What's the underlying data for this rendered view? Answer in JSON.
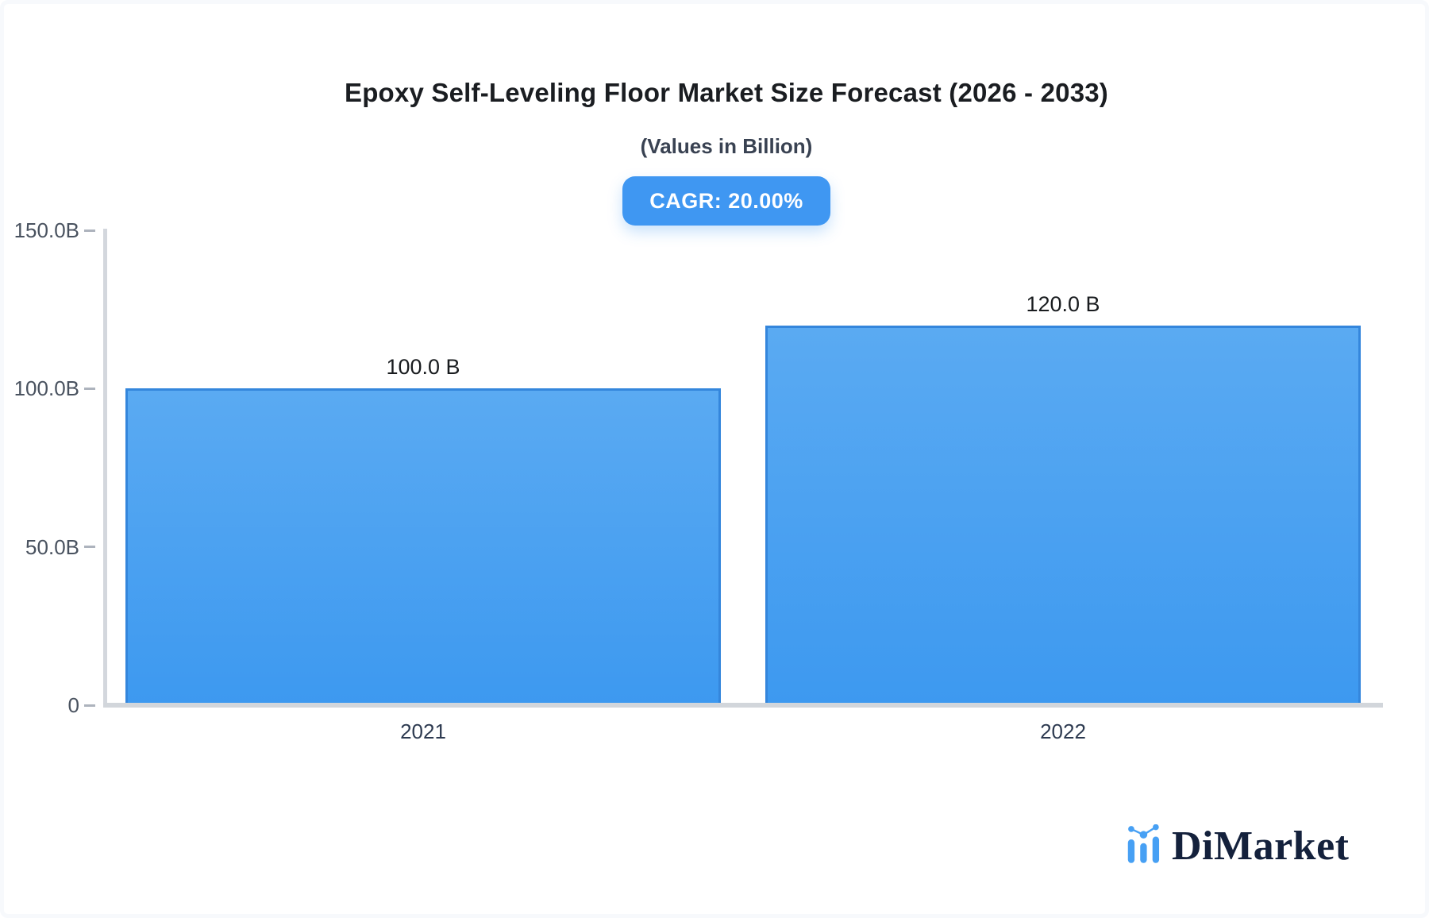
{
  "header": {
    "title": "Epoxy Self-Leveling Floor Market Size Forecast (2026 - 2033)",
    "subtitle": "(Values in Billion)",
    "cagr_badge": "CAGR: 20.00%"
  },
  "chart_data": {
    "type": "bar",
    "title": "Epoxy Self-Leveling Floor Market Size Forecast (2026 - 2033)",
    "subtitle": "(Values in Billion)",
    "unit": "Billion",
    "cagr_pct": "20.00%",
    "categories": [
      "2021",
      "2022"
    ],
    "values": [
      100.0,
      120.0
    ],
    "value_labels": [
      "100.0 B",
      "120.0 B"
    ],
    "ylim": [
      0,
      150
    ],
    "yticks": [
      {
        "value": 150,
        "label": "150.0B"
      },
      {
        "value": 100,
        "label": "100.0B"
      },
      {
        "value": 50,
        "label": "50.0B"
      },
      {
        "value": 0,
        "label": "0"
      }
    ],
    "grid": false,
    "legend": "none",
    "colors": {
      "bar_top": "#5aaaf2",
      "bar_bottom": "#3d99f0",
      "bar_border": "#3486dc",
      "badge_bg": "#3f97f2",
      "axis_line": "#d3d7dd",
      "tick_mark": "#adb3bd"
    }
  },
  "branding": {
    "logo_text": "DiMarket",
    "logo_icon": "mini-bar-chart-trend-icon",
    "logo_icon_color": "#47a0f4",
    "logo_text_color": "#14213c"
  }
}
